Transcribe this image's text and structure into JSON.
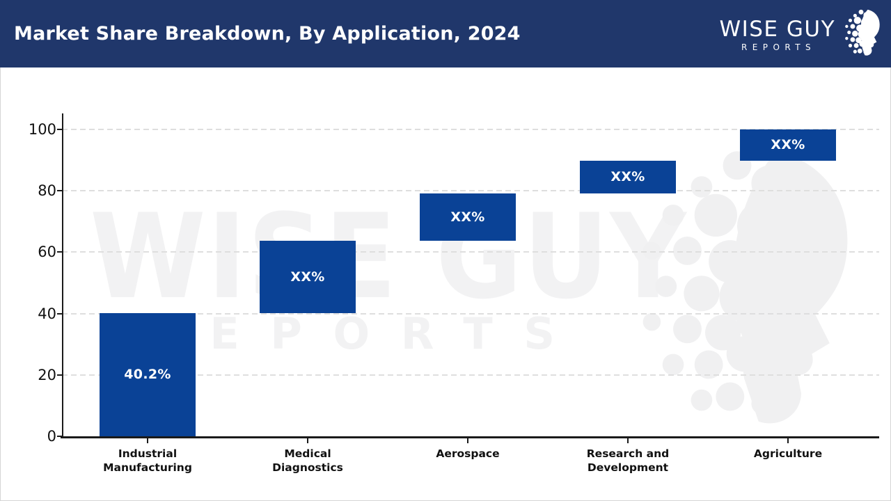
{
  "header": {
    "title": "Market Share Breakdown, By Application, 2024",
    "logo": {
      "wordmark": "WISE GUY",
      "subtitle": "REPORTS"
    }
  },
  "watermark": {
    "wordmark": "WISE GUY",
    "subtitle": "REPORTS"
  },
  "chart_data": {
    "type": "bar",
    "subtype": "waterfall",
    "title": "Market Share Breakdown, By Application, 2024",
    "categories": [
      "Industrial Manufacturing",
      "Medical Diagnostics",
      "Aerospace",
      "Research and Development",
      "Agriculture"
    ],
    "category_lines": [
      [
        "Industrial",
        "Manufacturing"
      ],
      [
        "Medical",
        "Diagnostics"
      ],
      [
        "Aerospace"
      ],
      [
        "Research and",
        "Development"
      ],
      [
        "Agriculture"
      ]
    ],
    "segments": [
      {
        "category": "Industrial Manufacturing",
        "start": 0,
        "end": 40.2,
        "label": "40.2%"
      },
      {
        "category": "Medical Diagnostics",
        "start": 40.2,
        "end": 63.8,
        "label": "XX%"
      },
      {
        "category": "Aerospace",
        "start": 63.8,
        "end": 79.2,
        "label": "XX%"
      },
      {
        "category": "Research and Development",
        "start": 79.2,
        "end": 89.9,
        "label": "XX%"
      },
      {
        "category": "Agriculture",
        "start": 89.9,
        "end": 100,
        "label": "XX%"
      }
    ],
    "xlabel": "",
    "ylabel": "",
    "ylim": [
      0,
      100
    ],
    "yticks": [
      0,
      20,
      40,
      60,
      80,
      100
    ],
    "legend": "none",
    "grid": "horizontal-dashed",
    "colors": {
      "bar": "#0a4296",
      "bar_label": "#ffffff",
      "header_bg": "#20376b",
      "grid": "#dedede",
      "axis": "#1a1a1a",
      "tick_text": "#111111",
      "watermark": "#f2f2f3"
    }
  }
}
